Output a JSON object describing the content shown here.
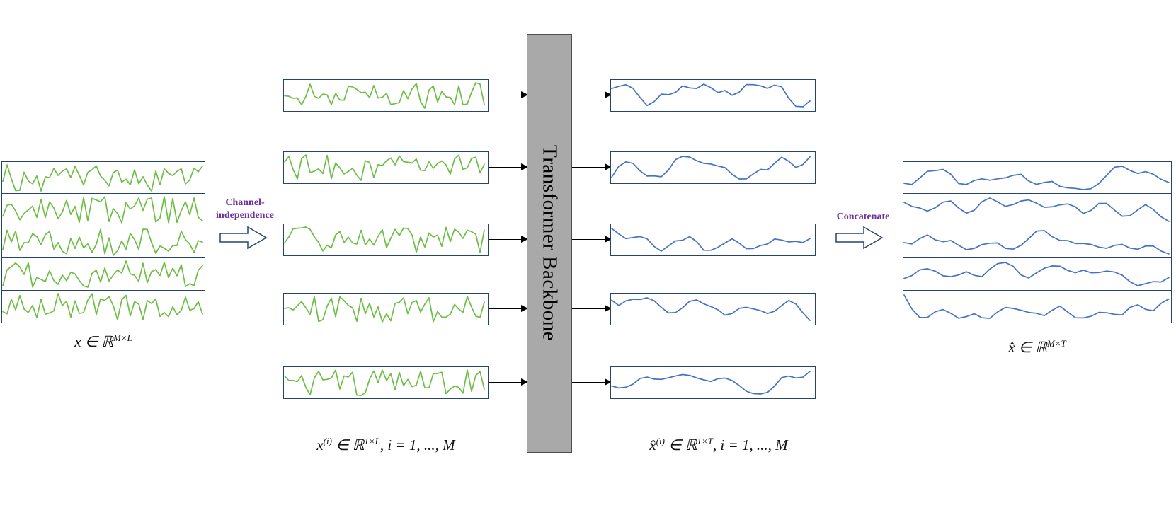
{
  "colors": {
    "background": "#ffffff",
    "green": "#6dbe45",
    "blue": "#4472c4",
    "box_border": "#24456e",
    "backbone_fill": "#a9a9a9",
    "backbone_border": "#4d4d4d",
    "purple": "#7030a0",
    "arrow": "#000000"
  },
  "backbone": {
    "label": "Transformer Backbone"
  },
  "annotations": {
    "channel_independence": [
      "Channel-",
      "independence"
    ],
    "concatenate": "Concatenate"
  },
  "labels": {
    "input": {
      "p1": "x ∈ ℝ",
      "s1": "M×L"
    },
    "channels_in": {
      "p1": "x",
      "s1": "(i)",
      "p2": " ∈ ℝ",
      "s2": "1×L",
      "p3": ", i = 1, ..., M"
    },
    "channels_out": {
      "p1": "x̂",
      "s1": "(i)",
      "p2": " ∈ ℝ",
      "s2": "1×T",
      "p3": ", i = 1, ..., M"
    },
    "output": {
      "p1": "x̂ ∈ ℝ",
      "s1": "M×T"
    }
  },
  "structure": {
    "num_channels": 5
  }
}
